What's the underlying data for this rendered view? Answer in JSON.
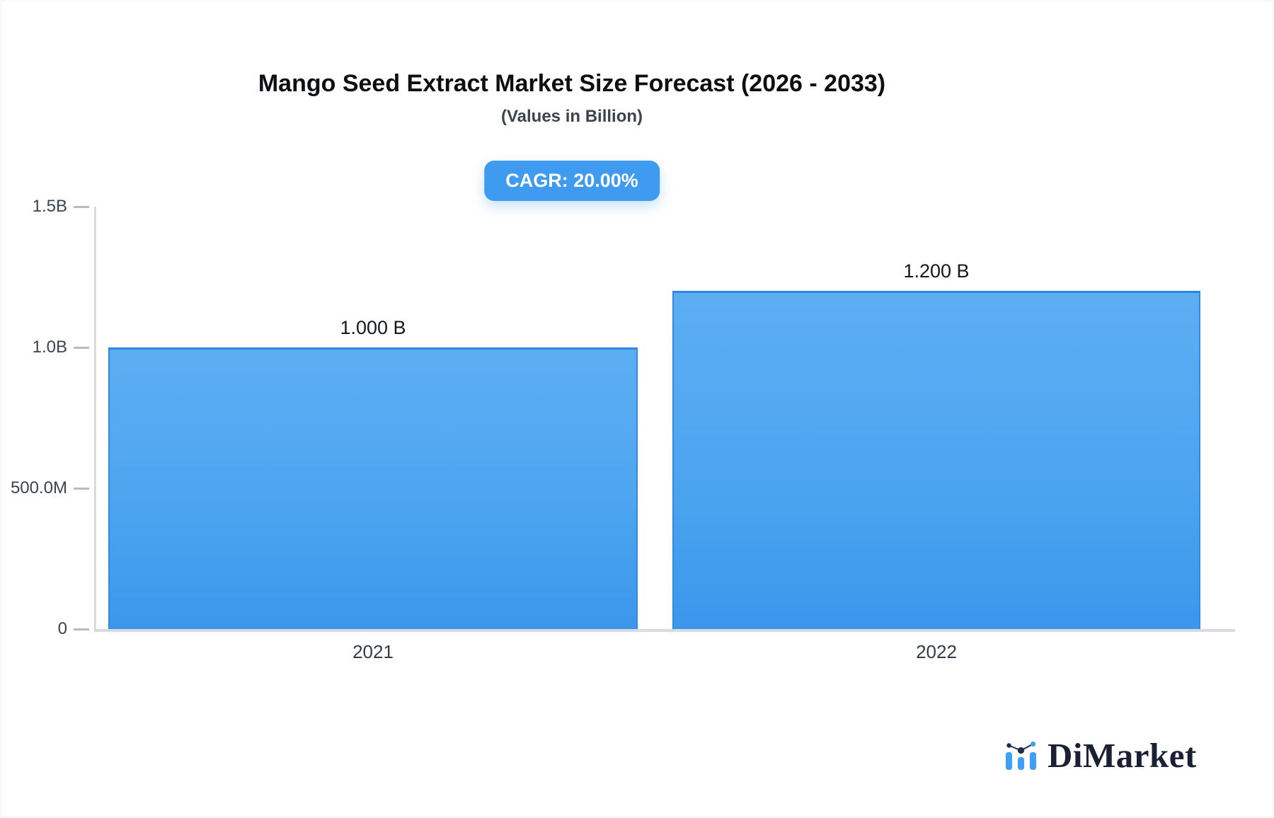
{
  "title": "Mango Seed Extract Market Size Forecast (2026 - 2033)",
  "subtitle": "(Values in Billion)",
  "cagr_badge": "CAGR: 20.00%",
  "chart_data": {
    "type": "bar",
    "categories": [
      "2021",
      "2022"
    ],
    "values": [
      1.0,
      1.2
    ],
    "value_labels": [
      "1.000 B",
      "1.200 B"
    ],
    "title": "Mango Seed Extract Market Size Forecast (2026 - 2033)",
    "subtitle": "(Values in Billion)",
    "xlabel": "",
    "ylabel": "",
    "ylim": [
      0,
      1.5
    ],
    "yticks": [
      {
        "label": "1.5B",
        "value": 1.5
      },
      {
        "label": "1.0B",
        "value": 1.0
      },
      {
        "label": "500.0M",
        "value": 0.5
      },
      {
        "label": "0",
        "value": 0
      }
    ],
    "grid": false,
    "legend": false,
    "annotations": [
      "CAGR: 20.00%"
    ],
    "bar_color_top": "#5caef3",
    "bar_color_bottom": "#3b97ec",
    "bar_border_color": "#2f87de"
  },
  "colors": {
    "badge_bg": "#3e9bef",
    "badge_text": "#ffffff",
    "axis": "#d8dce0",
    "logo_blue": "#3da0f5",
    "logo_navy": "#1d2b4f",
    "logo_text": "#1a2134"
  },
  "logo": {
    "text": "DiMarket"
  }
}
